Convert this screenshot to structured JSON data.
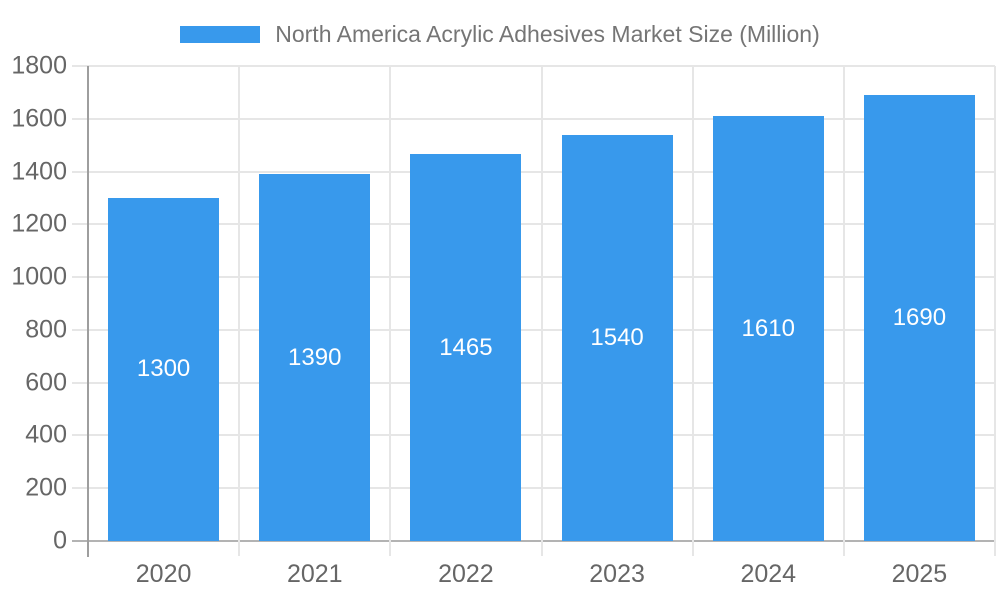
{
  "legend": {
    "label": "North America Acrylic Adhesives Market Size (Million)"
  },
  "chart_data": {
    "type": "bar",
    "title": "North America Acrylic Adhesives Market Size (Million)",
    "categories": [
      "2020",
      "2021",
      "2022",
      "2023",
      "2024",
      "2025"
    ],
    "values": [
      1300,
      1390,
      1465,
      1540,
      1610,
      1690
    ],
    "series": [
      {
        "name": "North America Acrylic Adhesives Market Size (Million)",
        "values": [
          1300,
          1390,
          1465,
          1540,
          1610,
          1690
        ]
      }
    ],
    "xlabel": "",
    "ylabel": "",
    "ylim": [
      0,
      1800
    ],
    "yticks": [
      0,
      200,
      400,
      600,
      800,
      1000,
      1200,
      1400,
      1600,
      1800
    ],
    "grid": true,
    "legend_position": "top",
    "bar_color": "#3899ec",
    "bar_label_color": "#ffffff",
    "axis_line_color": "#9e9e9e",
    "gridline_color": "#e6e6e6",
    "tick_label_color": "#666666",
    "legend_text_color": "#757575"
  }
}
